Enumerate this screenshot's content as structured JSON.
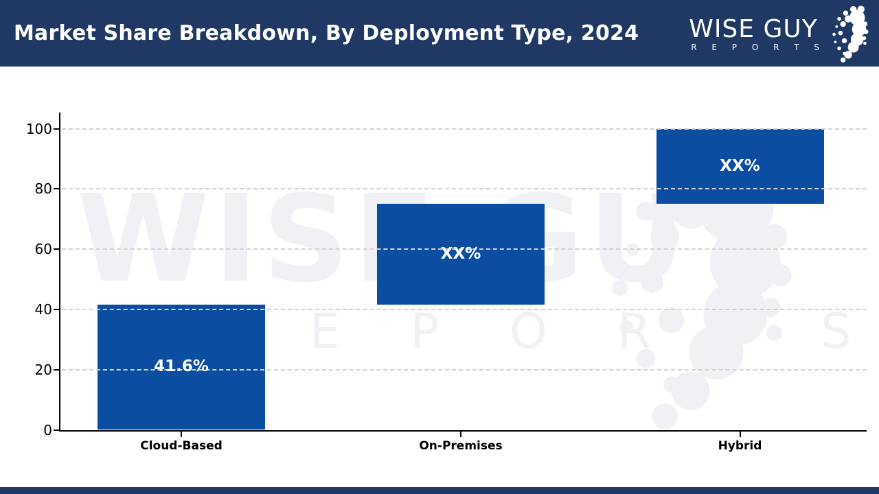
{
  "header": {
    "title": "Market Share Breakdown, By Deployment Type, 2024",
    "bg_color": "#1f3864",
    "logo": {
      "line1": "WISE GUY",
      "line2": "R E P O R T S"
    }
  },
  "watermark": {
    "line1": "WISE GUY",
    "line2": "R E P O R T S"
  },
  "chart_data": {
    "type": "bar",
    "subtype": "stacked-waterfall",
    "title": "Market Share Breakdown, By Deployment Type, 2024",
    "categories": [
      "Cloud-Based",
      "On-Premises",
      "Hybrid"
    ],
    "series": [
      {
        "name": "Cloud-Based",
        "start": 0,
        "end": 41.6,
        "label": "41.6%"
      },
      {
        "name": "On-Premises",
        "start": 41.6,
        "end": 75,
        "label": "XX%"
      },
      {
        "name": "Hybrid",
        "start": 75,
        "end": 100,
        "label": "XX%"
      }
    ],
    "xlabel": "",
    "ylabel": "",
    "ylim": [
      0,
      100
    ],
    "yticks": [
      0,
      20,
      40,
      60,
      80,
      100
    ],
    "grid": "horizontal-dashed-over-bars",
    "legend": "none",
    "bar_color": "#0b4da1",
    "label_color": "#ffffff",
    "grid_color": "#d2d2d2",
    "axis_color": "#000000"
  }
}
